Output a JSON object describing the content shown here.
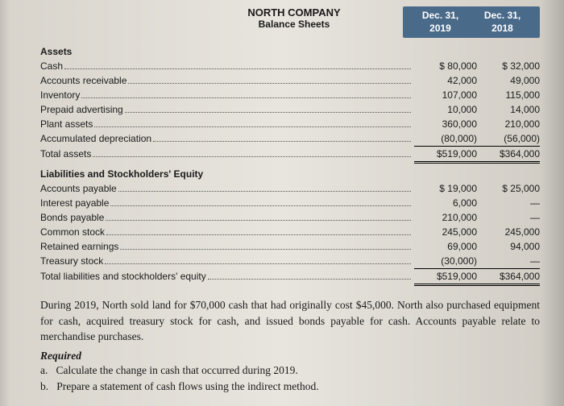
{
  "header": {
    "company": "NORTH COMPANY",
    "title": "Balance Sheets",
    "col1_line1": "Dec. 31,",
    "col1_line2": "2019",
    "col2_line1": "Dec. 31,",
    "col2_line2": "2018"
  },
  "assets_header": "Assets",
  "assets": [
    {
      "label": "Cash",
      "v1": "$ 80,000",
      "v2": "$ 32,000"
    },
    {
      "label": "Accounts receivable",
      "v1": "42,000",
      "v2": "49,000"
    },
    {
      "label": "Inventory",
      "v1": "107,000",
      "v2": "115,000"
    },
    {
      "label": "Prepaid advertising",
      "v1": "10,000",
      "v2": "14,000"
    },
    {
      "label": "Plant assets",
      "v1": "360,000",
      "v2": "210,000"
    },
    {
      "label": "Accumulated depreciation",
      "v1": "(80,000)",
      "v2": "(56,000)",
      "underline": true
    },
    {
      "label": "Total assets",
      "v1": "$519,000",
      "v2": "$364,000",
      "double": true
    }
  ],
  "liab_header": "Liabilities and Stockholders' Equity",
  "liab": [
    {
      "label": "Accounts payable",
      "v1": "$ 19,000",
      "v2": "$ 25,000"
    },
    {
      "label": "Interest payable",
      "v1": "6,000",
      "v2": "—"
    },
    {
      "label": "Bonds payable",
      "v1": "210,000",
      "v2": "—"
    },
    {
      "label": "Common stock",
      "v1": "245,000",
      "v2": "245,000"
    },
    {
      "label": "Retained earnings",
      "v1": "69,000",
      "v2": "94,000"
    },
    {
      "label": "Treasury stock",
      "v1": "(30,000)",
      "v2": "—",
      "underline": true
    },
    {
      "label": "Total liabilities and stockholders' equity",
      "v1": "$519,000",
      "v2": "$364,000",
      "double": true
    }
  ],
  "body": "During 2019, North sold land for $70,000 cash that had originally cost $45,000. North also purchased equipment for cash, acquired treasury stock for cash, and issued bonds payable for cash. Accounts payable relate to merchandise purchases.",
  "required_label": "Required",
  "req_a_letter": "a.",
  "req_a": "Calculate the change in cash that occurred during 2019.",
  "req_b_letter": "b.",
  "req_b": "Prepare a statement of cash flows using the indirect method."
}
